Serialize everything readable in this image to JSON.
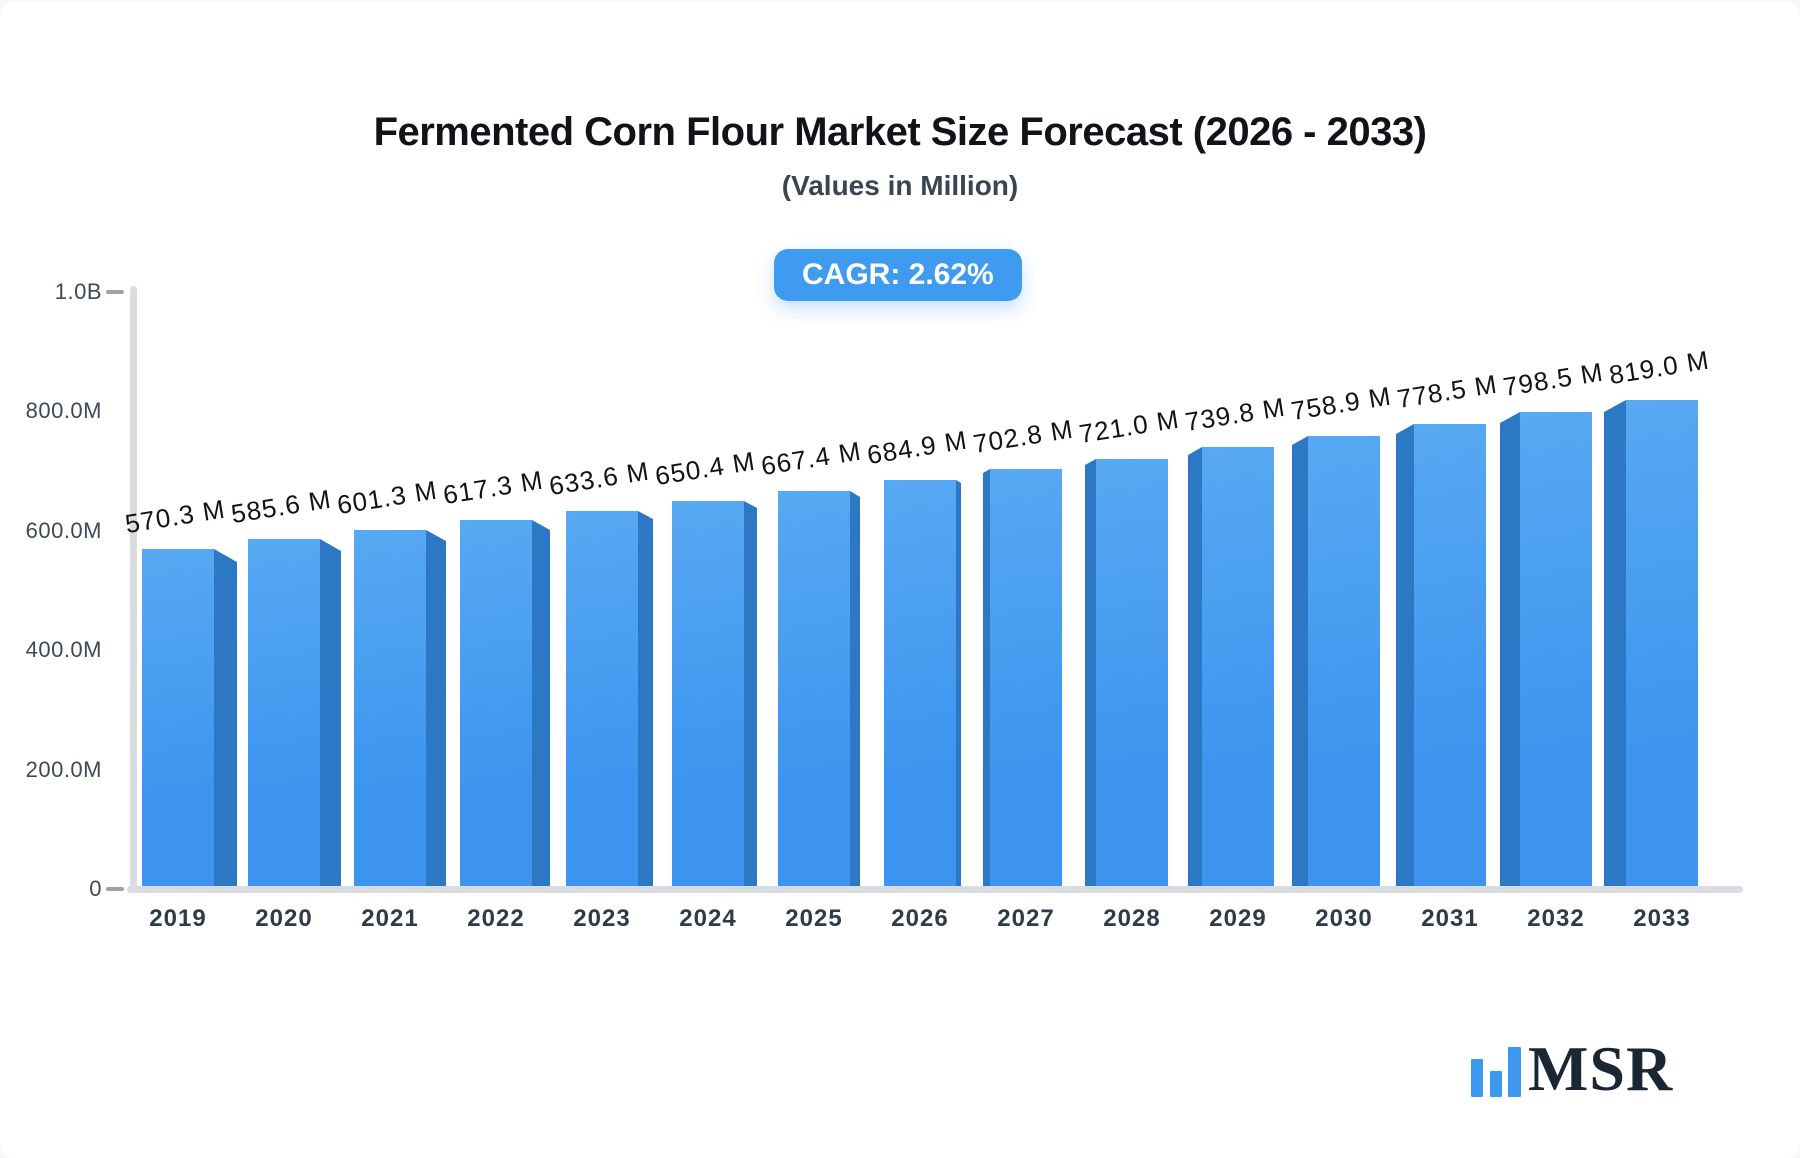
{
  "header": {
    "title": "Fermented Corn Flour Market Size Forecast (2026 - 2033)",
    "subtitle": "(Values in Million)"
  },
  "badge": {
    "label": "CAGR: 2.62%"
  },
  "logo": {
    "text": "MSR"
  },
  "colors": {
    "bar_front_top": "#58a9f2",
    "bar_front_bottom": "#3d95ef",
    "bar_side": "#2d78c4",
    "axis_line": "#d9dce1",
    "tick_dash": "#9aa2ac",
    "badge_bg": "#3f9bef",
    "label_text": "#131313",
    "logo_blue": "#3d99f0",
    "logo_navy": "#1b2634"
  },
  "chart_data": {
    "type": "bar",
    "title": "Fermented Corn Flour Market Size Forecast (2026 - 2033)",
    "subtitle": "(Values in Million)",
    "unit": "Million",
    "value_suffix": " M",
    "categories": [
      "2019",
      "2020",
      "2021",
      "2022",
      "2023",
      "2024",
      "2025",
      "2026",
      "2027",
      "2028",
      "2029",
      "2030",
      "2031",
      "2032",
      "2033"
    ],
    "values": [
      570.3,
      585.6,
      601.3,
      617.3,
      633.6,
      650.4,
      667.4,
      684.9,
      702.8,
      721.0,
      739.8,
      758.9,
      778.5,
      798.5,
      819.0
    ],
    "value_labels": [
      "570.3 M",
      "585.6 M",
      "601.3 M",
      "617.3 M",
      "633.6 M",
      "650.4 M",
      "667.4 M",
      "684.9 M",
      "702.8 M",
      "721.0 M",
      "739.8 M",
      "758.9 M",
      "778.5 M",
      "798.5 M",
      "819.0 M"
    ],
    "cagr": "2.62%",
    "xlabel": "",
    "ylabel": "",
    "ylim": [
      0,
      1000
    ],
    "grid": false,
    "legend": false,
    "y_axis": [
      {
        "label": "1.0B",
        "value": 1000,
        "dash": true
      },
      {
        "label": "800.0M",
        "value": 800,
        "dash": false
      },
      {
        "label": "600.0M",
        "value": 600,
        "dash": false
      },
      {
        "label": "400.0M",
        "value": 400,
        "dash": false
      },
      {
        "label": "200.0M",
        "value": 200,
        "dash": false
      },
      {
        "label": "0",
        "value": 0,
        "dash": true
      }
    ]
  }
}
